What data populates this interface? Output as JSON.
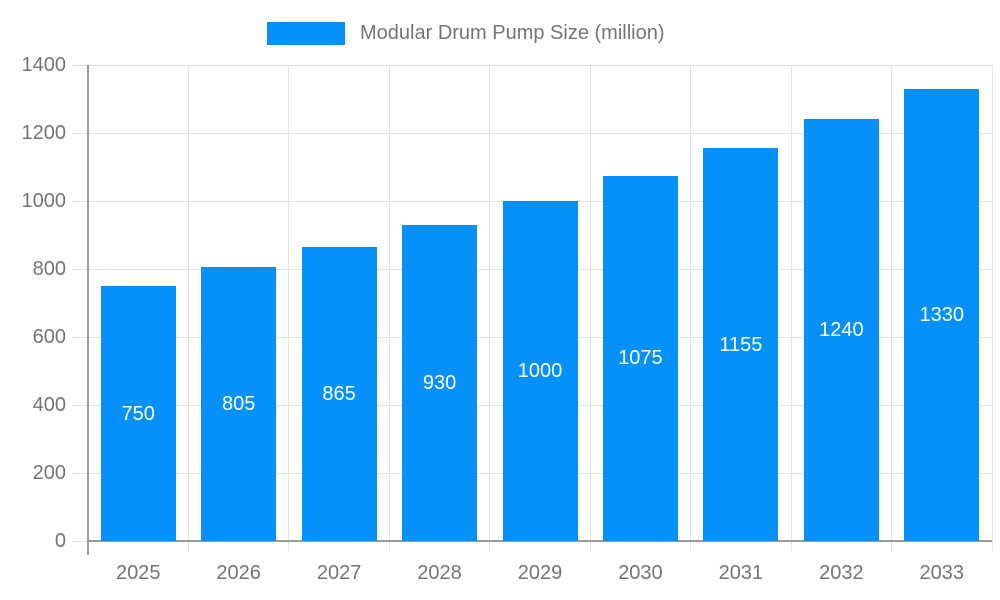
{
  "chart_data": {
    "type": "bar",
    "title": "Modular Drum Pump Size (million)",
    "categories": [
      "2025",
      "2026",
      "2027",
      "2028",
      "2029",
      "2030",
      "2031",
      "2032",
      "2033"
    ],
    "values": [
      750,
      805,
      865,
      930,
      1000,
      1075,
      1155,
      1240,
      1330
    ],
    "xlabel": "",
    "ylabel": "",
    "ylim": [
      0,
      1400
    ],
    "y_ticks": [
      0,
      200,
      400,
      600,
      800,
      1000,
      1200,
      1400
    ],
    "grid": true,
    "legend_position": "top",
    "value_label_position": "inside-center",
    "colors": {
      "bar": "#0590fa",
      "grid": "#e3e3e3",
      "axis": "#9a9a9a",
      "tick_text": "#757575",
      "value_text": "#ffffff",
      "background": "#ffffff"
    }
  },
  "legend": {
    "label": "Modular Drum Pump Size (million)"
  }
}
